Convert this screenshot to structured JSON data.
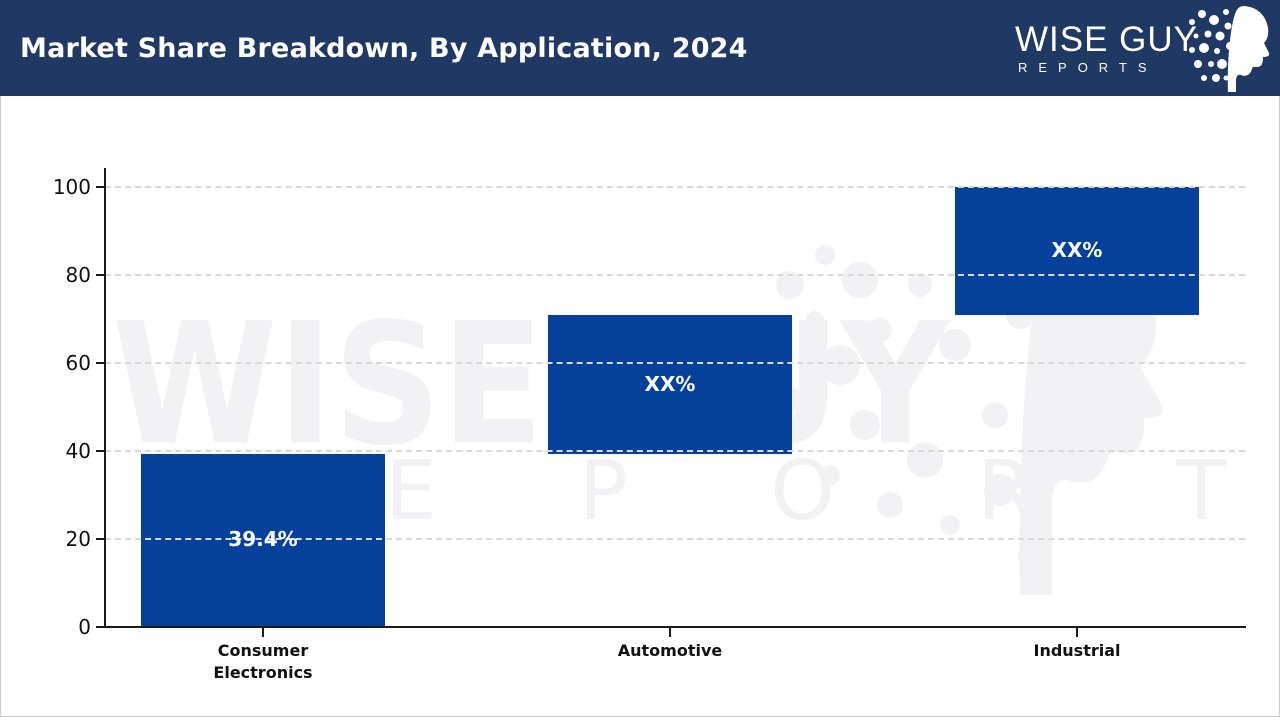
{
  "header": {
    "title": "Market Share Breakdown, By Application, 2024",
    "logo": {
      "line1": "WISE GUY",
      "line2": "REPORTS"
    }
  },
  "watermark": {
    "line1": "WISE GUY",
    "line2": "REPORTS"
  },
  "colors": {
    "header_bg": "#1f3864",
    "bar": "#05409a",
    "grid": "#d9d9d9",
    "axis": "#1a1a1a",
    "watermark": "#f2f2f4",
    "bar_label": "#ffffff"
  },
  "chart_data": {
    "type": "bar",
    "subtype": "floating-segment-waterfall",
    "title": "Market Share Breakdown, By Application, 2024",
    "categories": [
      "Consumer Electronics",
      "Automotive",
      "Industrial"
    ],
    "segments": [
      {
        "category": "Consumer Electronics",
        "start": 0,
        "end": 39.4,
        "value": 39.4,
        "label": "39.4%"
      },
      {
        "category": "Automotive",
        "start": 39.4,
        "end": 70.8,
        "value": 31.4,
        "label": "XX%"
      },
      {
        "category": "Industrial",
        "start": 70.8,
        "end": 100,
        "value": 29.2,
        "label": "XX%"
      }
    ],
    "xlabel": "",
    "ylabel": "",
    "ylim": [
      0,
      100
    ],
    "yticks": [
      0,
      20,
      40,
      60,
      80,
      100
    ],
    "grid": "horizontal-dashed",
    "legend": "none"
  }
}
